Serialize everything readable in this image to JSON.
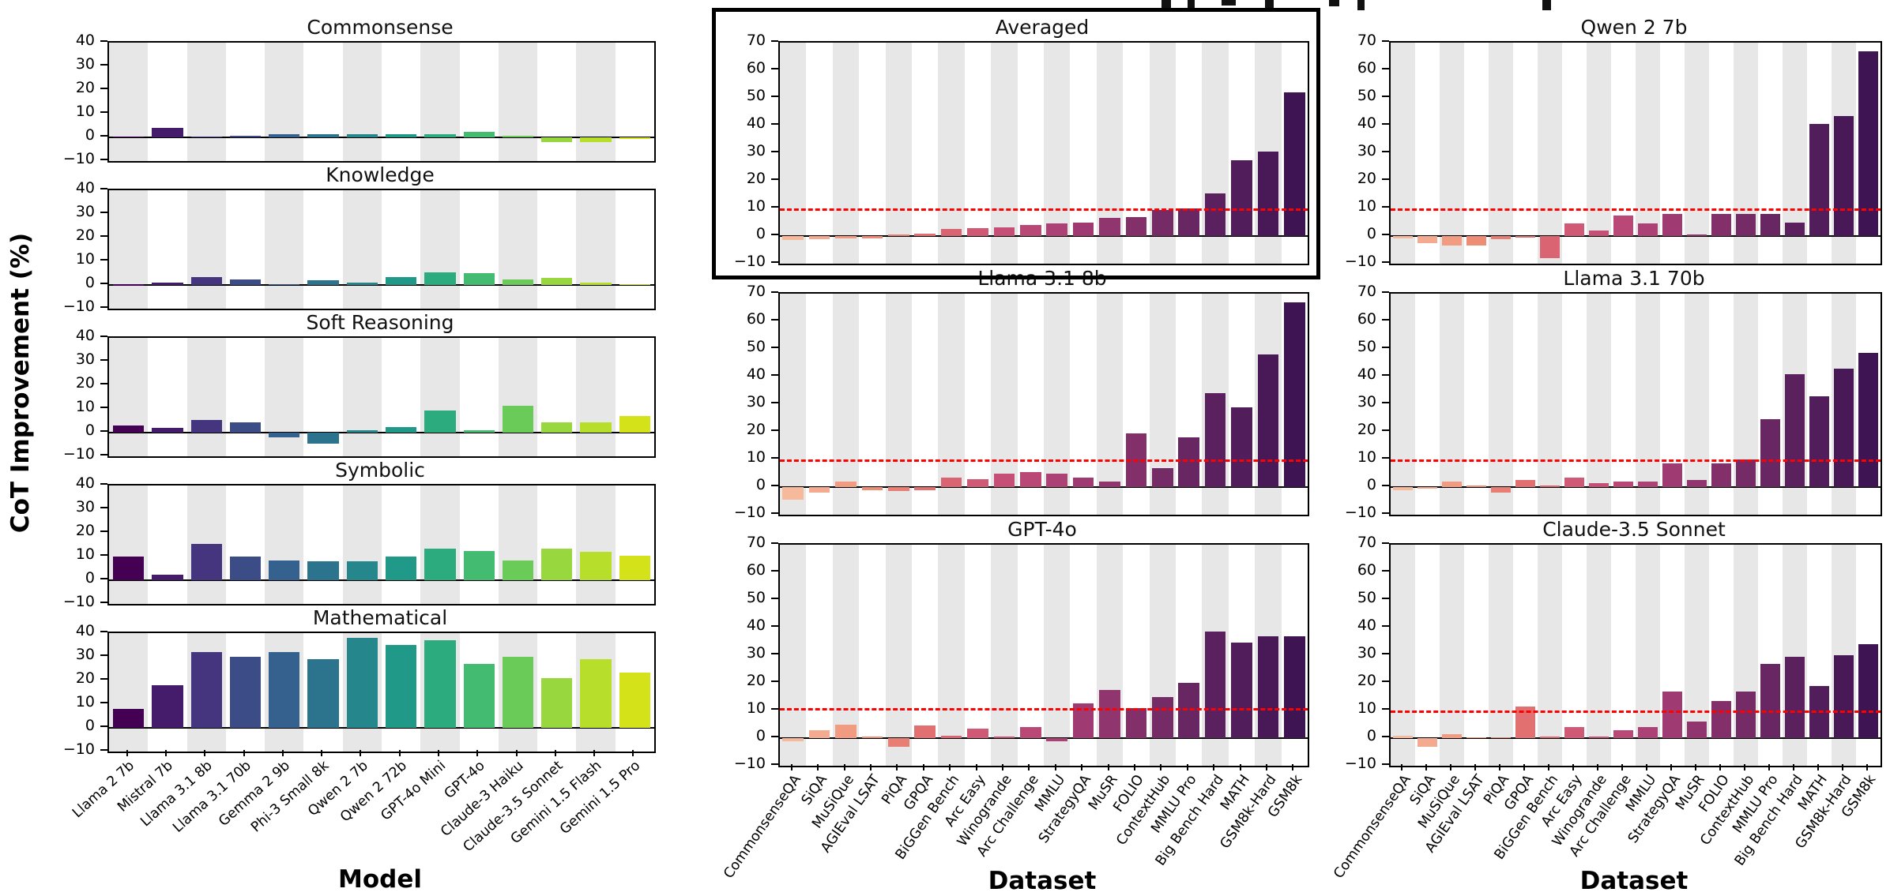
{
  "figure": {
    "ylabel": "CoT Improvement (%)",
    "model_xlabel": "Model",
    "dataset_xlabel": "Dataset",
    "stripe_color": "#e7e7e7",
    "ref_line_color": "#ff0000",
    "clipped_title_visible": true
  },
  "chart_data": {
    "type": "bar",
    "grid": "alternating column stripes",
    "legend": "none",
    "ylabel": "CoT Improvement (%)",
    "model_categories": [
      "Llama 2 7b",
      "Mistral 7b",
      "Llama 3.1 8b",
      "Llama 3.1 70b",
      "Gemma 2 9b",
      "Phi-3 Small 8k",
      "Qwen 2 7b",
      "Qwen 2 72b",
      "GPT-4o Mini",
      "GPT-4o",
      "Claude-3 Haiku",
      "Claude-3.5 Sonnet",
      "Gemini 1.5 Flash",
      "Gemini 1.5 Pro"
    ],
    "dataset_categories": [
      "CommonsenseQA",
      "SiQA",
      "MuSiQue",
      "AGIEval LSAT",
      "PiQA",
      "GPQA",
      "BiGGen Bench",
      "Arc Easy",
      "Winogrande",
      "Arc Challenge",
      "MMLU",
      "StrategyQA",
      "MuSR",
      "FOLIO",
      "ContextHub",
      "MMLU Pro",
      "Big Bench Hard",
      "MATH",
      "GSM8k-Hard",
      "GSM8k"
    ],
    "model_charts": [
      {
        "title": "Commonsense",
        "xlabel": "Model",
        "ylim": [
          -10,
          40
        ],
        "values": [
          0.4,
          4.0,
          0.4,
          0.8,
          1.2,
          1.5,
          1.5,
          1.5,
          1.2,
          2.5,
          0.8,
          -2.0,
          -2.0,
          -0.8
        ]
      },
      {
        "title": "Knowledge",
        "xlabel": "Model",
        "ylim": [
          -10,
          40
        ],
        "values": [
          0.3,
          1.0,
          3.5,
          2.5,
          0.4,
          2.0,
          1.0,
          3.5,
          5.5,
          5.0,
          2.5,
          3.0,
          1.0,
          0.5
        ]
      },
      {
        "title": "Soft Reasoning",
        "xlabel": "Model",
        "ylim": [
          -10,
          40
        ],
        "values": [
          3.0,
          2.0,
          5.5,
          4.5,
          -2.0,
          -4.5,
          1.0,
          2.5,
          9.5,
          1.0,
          11.5,
          4.5,
          4.5,
          7.0
        ]
      },
      {
        "title": "Symbolic",
        "xlabel": "Model",
        "ylim": [
          -10,
          40
        ],
        "values": [
          10.0,
          2.5,
          15.5,
          10.0,
          8.5,
          8.0,
          8.0,
          10.0,
          13.5,
          12.5,
          8.5,
          13.5,
          12.0,
          10.5
        ]
      },
      {
        "title": "Mathematical",
        "xlabel": "Model",
        "ylim": [
          -10,
          40
        ],
        "values": [
          8.0,
          18.0,
          32.0,
          30.0,
          32.0,
          29.0,
          38.0,
          35.0,
          37.0,
          27.0,
          30.0,
          21.0,
          29.0,
          23.5
        ]
      }
    ],
    "dataset_charts": [
      {
        "title": "Averaged",
        "xlabel": "Dataset",
        "ylim": [
          -10,
          70
        ],
        "ref_line": 9.5,
        "highlighted": true,
        "values": [
          -1.5,
          -1.0,
          -0.8,
          -0.8,
          0.5,
          1.0,
          2.5,
          3.0,
          3.2,
          4.0,
          4.5,
          5.0,
          6.5,
          7.0,
          9.5,
          10.0,
          15.5,
          27.5,
          30.5,
          52.0
        ]
      },
      {
        "title": "Qwen 2 7b",
        "xlabel": "Dataset",
        "ylim": [
          -10,
          70
        ],
        "ref_line": 9.5,
        "highlighted": false,
        "values": [
          -0.8,
          -2.5,
          -3.5,
          -3.5,
          -1.0,
          -0.5,
          -8.0,
          4.5,
          2.0,
          7.5,
          4.5,
          8.0,
          0.5,
          8.0,
          8.0,
          8.0,
          5.0,
          40.5,
          43.5,
          67.0
        ]
      },
      {
        "title": "Llama 3.1 8b",
        "xlabel": "Dataset",
        "ylim": [
          -10,
          70
        ],
        "ref_line": 9.5,
        "highlighted": false,
        "values": [
          -4.5,
          -2.0,
          2.0,
          -1.0,
          -1.5,
          -1.0,
          3.5,
          3.0,
          5.0,
          5.5,
          5.0,
          3.5,
          2.0,
          19.5,
          7.0,
          18.0,
          34.0,
          29.0,
          48.0,
          67.0
        ]
      },
      {
        "title": "Llama 3.1 70b",
        "xlabel": "Dataset",
        "ylim": [
          -10,
          70
        ],
        "ref_line": 9.5,
        "highlighted": false,
        "values": [
          -1.0,
          -0.5,
          2.0,
          0.5,
          -2.0,
          2.5,
          0.5,
          3.5,
          1.5,
          2.0,
          2.0,
          8.5,
          2.5,
          8.5,
          10.0,
          24.5,
          41.0,
          33.0,
          43.0,
          48.5
        ]
      },
      {
        "title": "GPT-4o",
        "xlabel": "Dataset",
        "ylim": [
          -10,
          70
        ],
        "ref_line": 10.5,
        "highlighted": false,
        "values": [
          -1.0,
          3.0,
          5.0,
          0.5,
          -3.0,
          4.5,
          1.0,
          3.5,
          0.5,
          4.0,
          -1.0,
          12.5,
          17.5,
          11.0,
          15.0,
          20.0,
          38.5,
          34.5,
          37.0,
          37.0
        ]
      },
      {
        "title": "Claude-3.5 Sonnet",
        "xlabel": "Dataset",
        "ylim": [
          -10,
          70
        ],
        "ref_line": 9.5,
        "highlighted": false,
        "values": [
          1.0,
          -3.0,
          1.5,
          0.3,
          0.3,
          11.5,
          0.5,
          4.0,
          0.5,
          3.0,
          4.0,
          17.0,
          6.0,
          13.5,
          17.0,
          27.0,
          29.5,
          19.0,
          30.0,
          34.0
        ]
      }
    ]
  }
}
